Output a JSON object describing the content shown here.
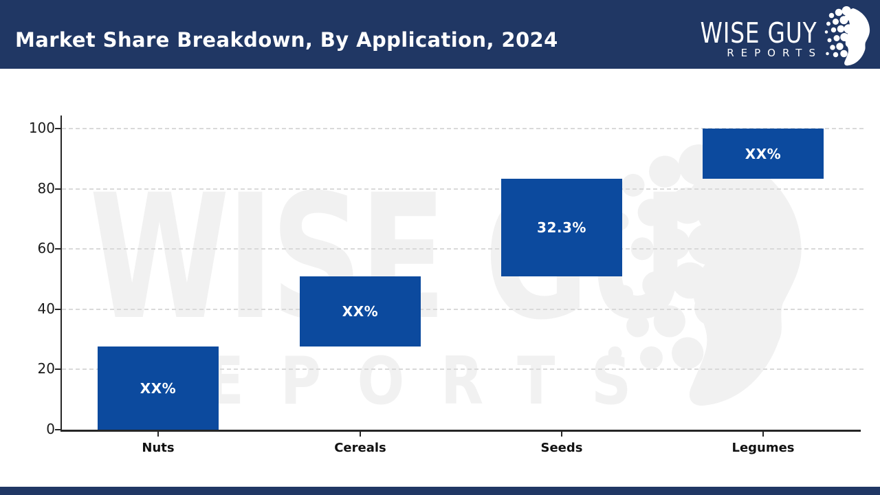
{
  "header": {
    "title": "Market Share Breakdown, By Application, 2024",
    "logo": {
      "line1": "WISE GUY",
      "line2": "REPORTS"
    }
  },
  "watermark": {
    "line1": "WISE GUY",
    "line2": "REPORTS"
  },
  "colors": {
    "header_bg": "#203764",
    "bar_blue": "#0c4a9e",
    "gridline": "#d9d9d9",
    "axis": "#262626",
    "watermark": "#f1f1f1",
    "footer_bg": "#203764"
  },
  "chart_data": {
    "type": "bar",
    "subtype": "floating-waterfall",
    "title": "Market Share Breakdown, By Application, 2024",
    "categories": [
      "Nuts",
      "Cereals",
      "Seeds",
      "Legumes"
    ],
    "series": [
      {
        "name": "Market Share (%)",
        "segments": [
          {
            "category": "Nuts",
            "start": 0,
            "end": 27.6,
            "value_label": "XX%"
          },
          {
            "category": "Cereals",
            "start": 27.6,
            "end": 51,
            "value_label": "XX%"
          },
          {
            "category": "Seeds",
            "start": 51,
            "end": 83.3,
            "value_label": "32.3%"
          },
          {
            "category": "Legumes",
            "start": 83.3,
            "end": 100,
            "value_label": "XX%"
          }
        ]
      }
    ],
    "xlabel": "",
    "ylabel": "",
    "ylim": [
      0,
      104
    ],
    "yticks": [
      0,
      20,
      40,
      60,
      80,
      100
    ],
    "grid": "horizontal-dashed",
    "legend": false
  }
}
